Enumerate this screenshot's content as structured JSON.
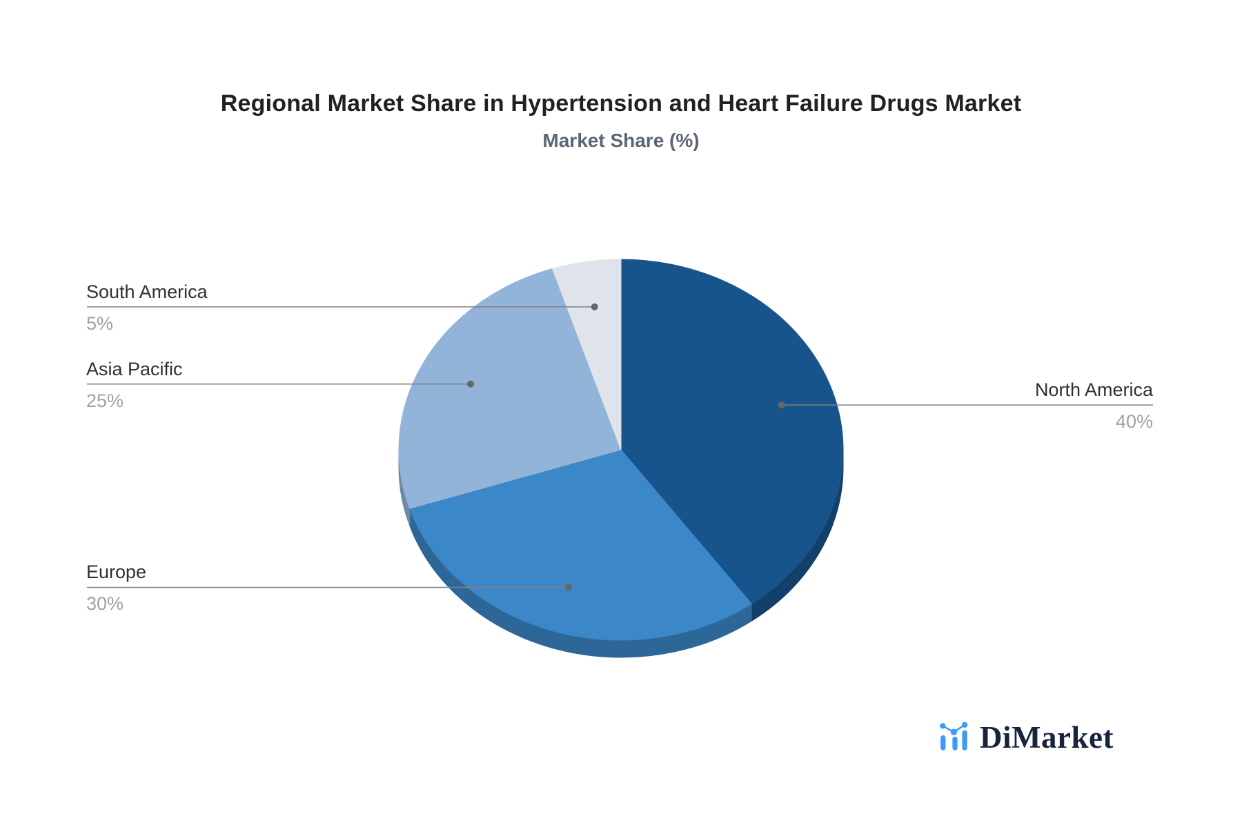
{
  "title": "Regional Market Share in Hypertension and Heart Failure Drugs Market",
  "subtitle": "Market Share (%)",
  "brand": {
    "name": "DiMarket",
    "icon": "bar-line-chart-icon",
    "icon_color": "#3E9BF4",
    "text_color": "#16243E"
  },
  "chart_data": {
    "type": "pie",
    "style": "3d",
    "title": "Regional Market Share in Hypertension and Heart Failure Drugs Market",
    "subtitle": "Market Share (%)",
    "unit": "%",
    "start_angle": "top",
    "direction": "clockwise",
    "legend_position": "none",
    "slices": [
      {
        "label": "North America",
        "value": 40,
        "display": "40%",
        "color": "#18548C",
        "callout_side": "right"
      },
      {
        "label": "Europe",
        "value": 30,
        "display": "30%",
        "color": "#3B87C8",
        "callout_side": "left"
      },
      {
        "label": "Asia Pacific",
        "value": 25,
        "display": "25%",
        "color": "#92B4D8",
        "callout_side": "left"
      },
      {
        "label": "South America",
        "value": 5,
        "display": "5%",
        "color": "#DFE4EC",
        "callout_side": "left"
      }
    ],
    "callout_line_color": "#808080",
    "callout_dot_color": "#666666",
    "label_color": "#2E3033",
    "value_color": "#9EA0A3"
  }
}
